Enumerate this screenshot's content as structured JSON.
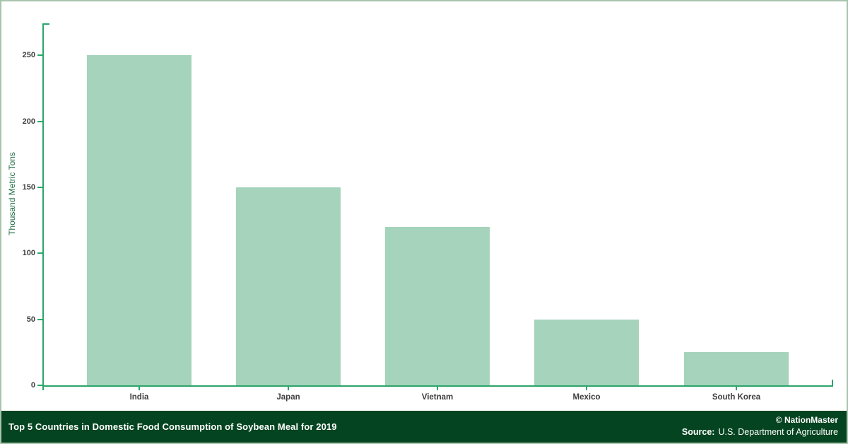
{
  "chart_data": {
    "type": "bar",
    "title": "Top 5 Countries in Domestic Food Consumption of Soybean Meal for 2019",
    "categories": [
      "India",
      "Japan",
      "Vietnam",
      "Mexico",
      "South Korea"
    ],
    "values": [
      250,
      150,
      120,
      50,
      25
    ],
    "xlabel": "",
    "ylabel": "Thousand Metric Tons",
    "ylim": [
      0,
      275
    ],
    "yticks": [
      0,
      50,
      100,
      150,
      200,
      250
    ],
    "grid": false,
    "legend": false
  },
  "colors": {
    "bar_fill": "#a5d3bb",
    "axis_green": "#2ca56a",
    "axis_title_green": "#206f44",
    "tick_text": "#3e3e3e",
    "footer_background": "#044420",
    "page_border": "#a9c4ad"
  },
  "footer": {
    "title": "Top 5 Countries in Domestic Food Consumption of Soybean Meal for 2019",
    "brand": "© NationMaster",
    "source_label": "Source:",
    "source_value": "U.S. Department of Agriculture"
  }
}
